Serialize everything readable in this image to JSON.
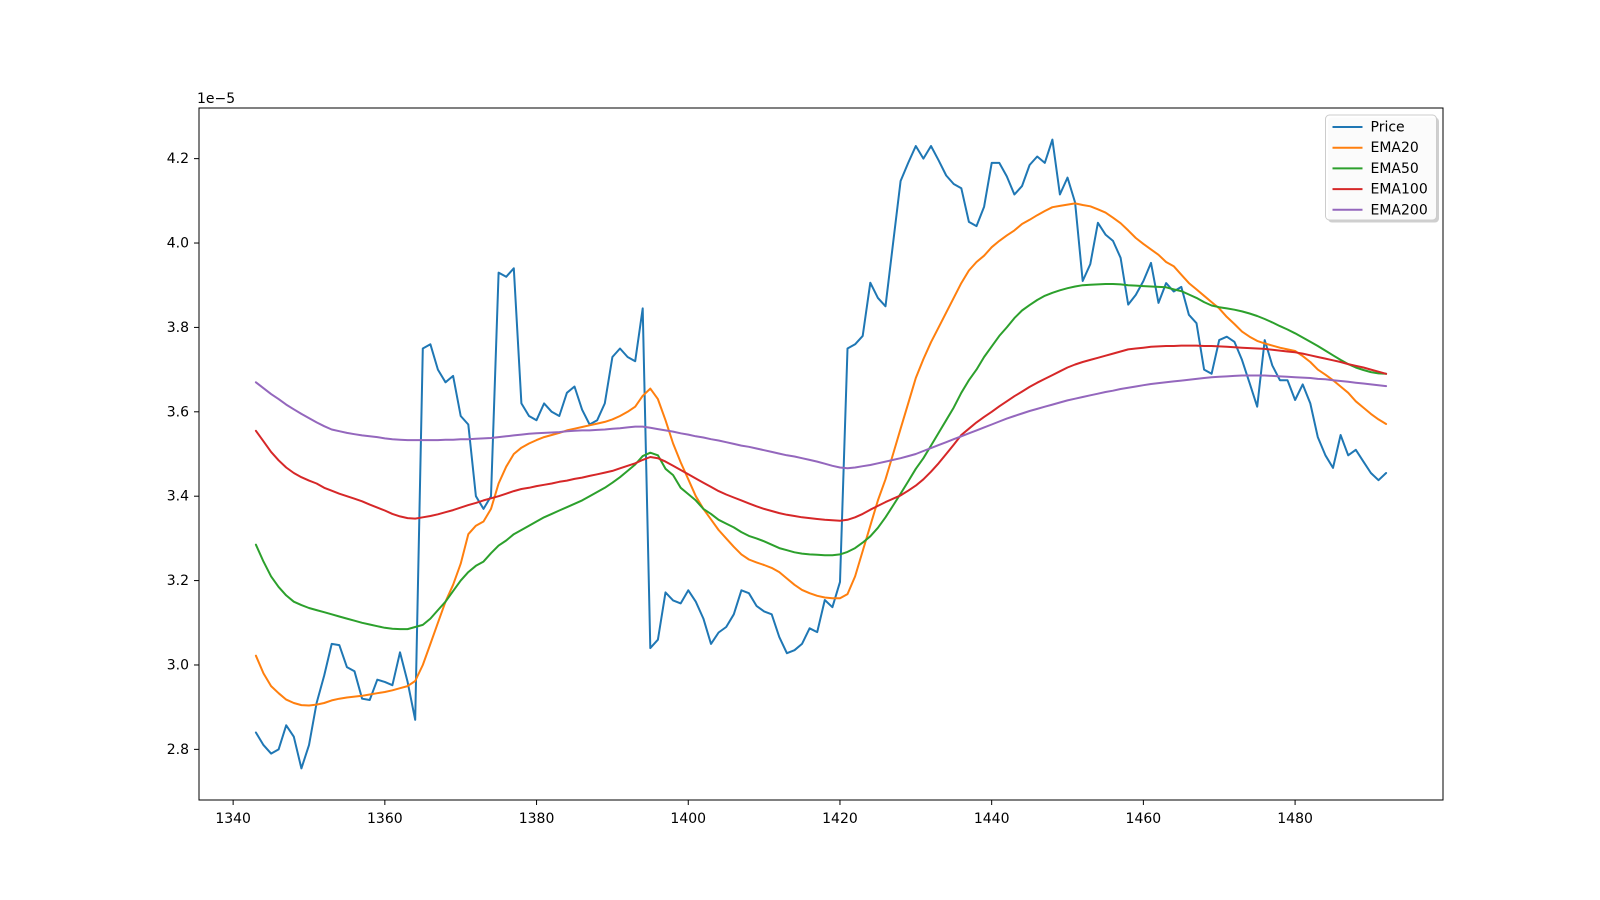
{
  "figure": {
    "offset_label": "1e−5",
    "background": "#ffffff",
    "axes": {
      "xlim": [
        1335.5,
        1499.5
      ],
      "ylim": [
        2.68,
        4.32
      ],
      "x_ticks": [
        1340,
        1360,
        1380,
        1400,
        1420,
        1440,
        1460,
        1480
      ],
      "y_ticks": [
        2.8,
        3.0,
        3.2,
        3.4,
        3.6,
        3.8,
        4.0,
        4.2
      ],
      "grid": false,
      "spine_color": "#000000",
      "tick_label_color": "#000000"
    },
    "legend": {
      "position": "upper right",
      "entries": [
        "Price",
        "EMA20",
        "EMA50",
        "EMA100",
        "EMA200"
      ],
      "border_color": "#cccccc",
      "shadow_color": "#a8a8a8",
      "face_color": "#ffffff"
    }
  },
  "chart_data": {
    "type": "line",
    "title": "",
    "xlabel": "",
    "ylabel": "",
    "y_scale_note": "values are ×1e-5",
    "x_start": 1343,
    "x_step": 1,
    "series": [
      {
        "name": "Price",
        "color": "#1f77b4",
        "y": [
          2.84,
          2.81,
          2.79,
          2.8,
          2.857,
          2.83,
          2.755,
          2.81,
          2.91,
          2.975,
          3.05,
          3.047,
          2.995,
          2.985,
          2.92,
          2.917,
          2.965,
          2.96,
          2.952,
          3.03,
          2.96,
          2.87,
          3.75,
          3.76,
          3.7,
          3.67,
          3.685,
          3.59,
          3.57,
          3.4,
          3.37,
          3.4,
          3.93,
          3.92,
          3.94,
          3.62,
          3.59,
          3.58,
          3.62,
          3.6,
          3.59,
          3.645,
          3.66,
          3.605,
          3.57,
          3.58,
          3.62,
          3.73,
          3.75,
          3.73,
          3.72,
          3.845,
          3.04,
          3.06,
          3.172,
          3.153,
          3.146,
          3.177,
          3.15,
          3.11,
          3.05,
          3.077,
          3.09,
          3.12,
          3.177,
          3.17,
          3.14,
          3.127,
          3.12,
          3.066,
          3.028,
          3.035,
          3.05,
          3.087,
          3.078,
          3.154,
          3.137,
          3.197,
          3.75,
          3.76,
          3.78,
          3.906,
          3.87,
          3.85,
          4.0,
          4.147,
          4.19,
          4.23,
          4.2,
          4.23,
          4.196,
          4.16,
          4.14,
          4.13,
          4.05,
          4.04,
          4.086,
          4.19,
          4.19,
          4.158,
          4.115,
          4.135,
          4.185,
          4.205,
          4.19,
          4.245,
          4.115,
          4.155,
          4.096,
          3.91,
          3.95,
          4.048,
          4.02,
          4.005,
          3.965,
          3.854,
          3.877,
          3.91,
          3.953,
          3.858,
          3.905,
          3.885,
          3.896,
          3.83,
          3.81,
          3.7,
          3.69,
          3.77,
          3.778,
          3.766,
          3.723,
          3.668,
          3.612,
          3.77,
          3.71,
          3.675,
          3.675,
          3.628,
          3.665,
          3.62,
          3.54,
          3.497,
          3.467,
          3.545,
          3.497,
          3.51,
          3.482,
          3.455,
          3.438,
          3.455
        ]
      },
      {
        "name": "EMA20",
        "color": "#ff7f0e",
        "y": [
          3.022,
          2.98,
          2.95,
          2.933,
          2.918,
          2.91,
          2.905,
          2.904,
          2.906,
          2.91,
          2.916,
          2.92,
          2.923,
          2.925,
          2.927,
          2.93,
          2.933,
          2.936,
          2.94,
          2.945,
          2.95,
          2.962,
          3.0,
          3.05,
          3.1,
          3.15,
          3.19,
          3.24,
          3.31,
          3.33,
          3.34,
          3.37,
          3.43,
          3.47,
          3.5,
          3.515,
          3.525,
          3.533,
          3.54,
          3.545,
          3.55,
          3.556,
          3.56,
          3.564,
          3.568,
          3.572,
          3.576,
          3.582,
          3.59,
          3.6,
          3.612,
          3.638,
          3.655,
          3.63,
          3.58,
          3.525,
          3.48,
          3.44,
          3.4,
          3.37,
          3.345,
          3.32,
          3.3,
          3.28,
          3.262,
          3.25,
          3.243,
          3.237,
          3.23,
          3.22,
          3.205,
          3.19,
          3.178,
          3.17,
          3.164,
          3.16,
          3.158,
          3.158,
          3.168,
          3.21,
          3.27,
          3.33,
          3.39,
          3.44,
          3.5,
          3.56,
          3.62,
          3.68,
          3.725,
          3.765,
          3.8,
          3.835,
          3.87,
          3.905,
          3.935,
          3.955,
          3.97,
          3.99,
          4.005,
          4.018,
          4.03,
          4.045,
          4.055,
          4.066,
          4.076,
          4.085,
          4.088,
          4.091,
          4.094,
          4.09,
          4.087,
          4.08,
          4.072,
          4.06,
          4.047,
          4.03,
          4.012,
          3.998,
          3.985,
          3.972,
          3.955,
          3.945,
          3.925,
          3.905,
          3.89,
          3.875,
          3.86,
          3.845,
          3.825,
          3.808,
          3.79,
          3.778,
          3.768,
          3.762,
          3.757,
          3.752,
          3.748,
          3.744,
          3.732,
          3.718,
          3.7,
          3.688,
          3.675,
          3.66,
          3.645,
          3.625,
          3.61,
          3.595,
          3.582,
          3.571
        ]
      },
      {
        "name": "EMA50",
        "color": "#2ca02c",
        "y": [
          3.285,
          3.245,
          3.21,
          3.185,
          3.165,
          3.15,
          3.142,
          3.135,
          3.13,
          3.125,
          3.12,
          3.115,
          3.11,
          3.105,
          3.1,
          3.096,
          3.092,
          3.088,
          3.086,
          3.085,
          3.085,
          3.09,
          3.095,
          3.11,
          3.13,
          3.15,
          3.175,
          3.2,
          3.22,
          3.235,
          3.245,
          3.265,
          3.283,
          3.295,
          3.31,
          3.32,
          3.33,
          3.34,
          3.35,
          3.358,
          3.366,
          3.374,
          3.382,
          3.39,
          3.4,
          3.41,
          3.42,
          3.432,
          3.445,
          3.46,
          3.475,
          3.495,
          3.503,
          3.497,
          3.465,
          3.45,
          3.42,
          3.405,
          3.39,
          3.37,
          3.358,
          3.344,
          3.335,
          3.326,
          3.315,
          3.306,
          3.3,
          3.293,
          3.285,
          3.277,
          3.272,
          3.267,
          3.264,
          3.262,
          3.261,
          3.26,
          3.26,
          3.262,
          3.268,
          3.277,
          3.29,
          3.305,
          3.325,
          3.35,
          3.378,
          3.406,
          3.435,
          3.465,
          3.49,
          3.52,
          3.55,
          3.58,
          3.61,
          3.645,
          3.675,
          3.7,
          3.73,
          3.755,
          3.78,
          3.8,
          3.822,
          3.84,
          3.853,
          3.865,
          3.875,
          3.882,
          3.888,
          3.893,
          3.897,
          3.9,
          3.901,
          3.902,
          3.903,
          3.903,
          3.902,
          3.9,
          3.899,
          3.898,
          3.897,
          3.896,
          3.895,
          3.89,
          3.886,
          3.878,
          3.87,
          3.86,
          3.852,
          3.848,
          3.845,
          3.842,
          3.838,
          3.833,
          3.827,
          3.82,
          3.812,
          3.803,
          3.795,
          3.786,
          3.776,
          3.766,
          3.756,
          3.745,
          3.734,
          3.723,
          3.713,
          3.705,
          3.699,
          3.694,
          3.691,
          3.69
        ]
      },
      {
        "name": "EMA100",
        "color": "#d62728",
        "y": [
          3.555,
          3.53,
          3.505,
          3.485,
          3.468,
          3.455,
          3.445,
          3.437,
          3.43,
          3.42,
          3.413,
          3.406,
          3.4,
          3.394,
          3.388,
          3.38,
          3.373,
          3.366,
          3.358,
          3.352,
          3.348,
          3.347,
          3.35,
          3.353,
          3.357,
          3.362,
          3.367,
          3.373,
          3.379,
          3.384,
          3.39,
          3.395,
          3.4,
          3.406,
          3.412,
          3.417,
          3.42,
          3.424,
          3.427,
          3.43,
          3.434,
          3.437,
          3.441,
          3.444,
          3.448,
          3.452,
          3.456,
          3.46,
          3.466,
          3.472,
          3.478,
          3.486,
          3.493,
          3.49,
          3.482,
          3.472,
          3.462,
          3.452,
          3.442,
          3.432,
          3.422,
          3.412,
          3.404,
          3.397,
          3.39,
          3.383,
          3.376,
          3.37,
          3.365,
          3.36,
          3.356,
          3.353,
          3.35,
          3.348,
          3.346,
          3.344,
          3.343,
          3.342,
          3.344,
          3.35,
          3.358,
          3.368,
          3.377,
          3.386,
          3.394,
          3.402,
          3.413,
          3.425,
          3.44,
          3.458,
          3.478,
          3.5,
          3.522,
          3.545,
          3.56,
          3.575,
          3.588,
          3.6,
          3.613,
          3.625,
          3.637,
          3.648,
          3.659,
          3.669,
          3.678,
          3.687,
          3.696,
          3.705,
          3.712,
          3.718,
          3.723,
          3.728,
          3.733,
          3.738,
          3.743,
          3.748,
          3.75,
          3.752,
          3.754,
          3.755,
          3.756,
          3.756,
          3.757,
          3.757,
          3.757,
          3.756,
          3.756,
          3.755,
          3.754,
          3.753,
          3.752,
          3.751,
          3.75,
          3.749,
          3.747,
          3.745,
          3.743,
          3.741,
          3.738,
          3.734,
          3.73,
          3.726,
          3.722,
          3.718,
          3.713,
          3.709,
          3.705,
          3.7,
          3.695,
          3.69
        ]
      },
      {
        "name": "EMA200",
        "color": "#9467bd",
        "y": [
          3.67,
          3.656,
          3.642,
          3.63,
          3.617,
          3.606,
          3.595,
          3.585,
          3.575,
          3.566,
          3.558,
          3.554,
          3.55,
          3.547,
          3.544,
          3.542,
          3.54,
          3.537,
          3.535,
          3.534,
          3.533,
          3.533,
          3.533,
          3.533,
          3.533,
          3.534,
          3.534,
          3.535,
          3.535,
          3.536,
          3.537,
          3.538,
          3.54,
          3.542,
          3.544,
          3.546,
          3.548,
          3.549,
          3.55,
          3.551,
          3.552,
          3.554,
          3.555,
          3.556,
          3.556,
          3.557,
          3.558,
          3.56,
          3.561,
          3.563,
          3.565,
          3.565,
          3.562,
          3.559,
          3.556,
          3.553,
          3.549,
          3.546,
          3.542,
          3.539,
          3.535,
          3.532,
          3.528,
          3.524,
          3.52,
          3.517,
          3.513,
          3.509,
          3.505,
          3.501,
          3.497,
          3.494,
          3.49,
          3.486,
          3.482,
          3.477,
          3.472,
          3.468,
          3.466,
          3.468,
          3.471,
          3.474,
          3.478,
          3.482,
          3.486,
          3.49,
          3.495,
          3.5,
          3.507,
          3.514,
          3.521,
          3.528,
          3.535,
          3.542,
          3.549,
          3.556,
          3.563,
          3.57,
          3.577,
          3.584,
          3.59,
          3.596,
          3.602,
          3.607,
          3.612,
          3.617,
          3.622,
          3.627,
          3.631,
          3.635,
          3.639,
          3.643,
          3.647,
          3.65,
          3.654,
          3.657,
          3.66,
          3.663,
          3.666,
          3.668,
          3.67,
          3.672,
          3.674,
          3.676,
          3.678,
          3.68,
          3.682,
          3.683,
          3.684,
          3.685,
          3.686,
          3.686,
          3.686,
          3.686,
          3.685,
          3.684,
          3.683,
          3.682,
          3.681,
          3.68,
          3.678,
          3.677,
          3.675,
          3.673,
          3.671,
          3.669,
          3.667,
          3.665,
          3.663,
          3.661
        ]
      }
    ]
  }
}
